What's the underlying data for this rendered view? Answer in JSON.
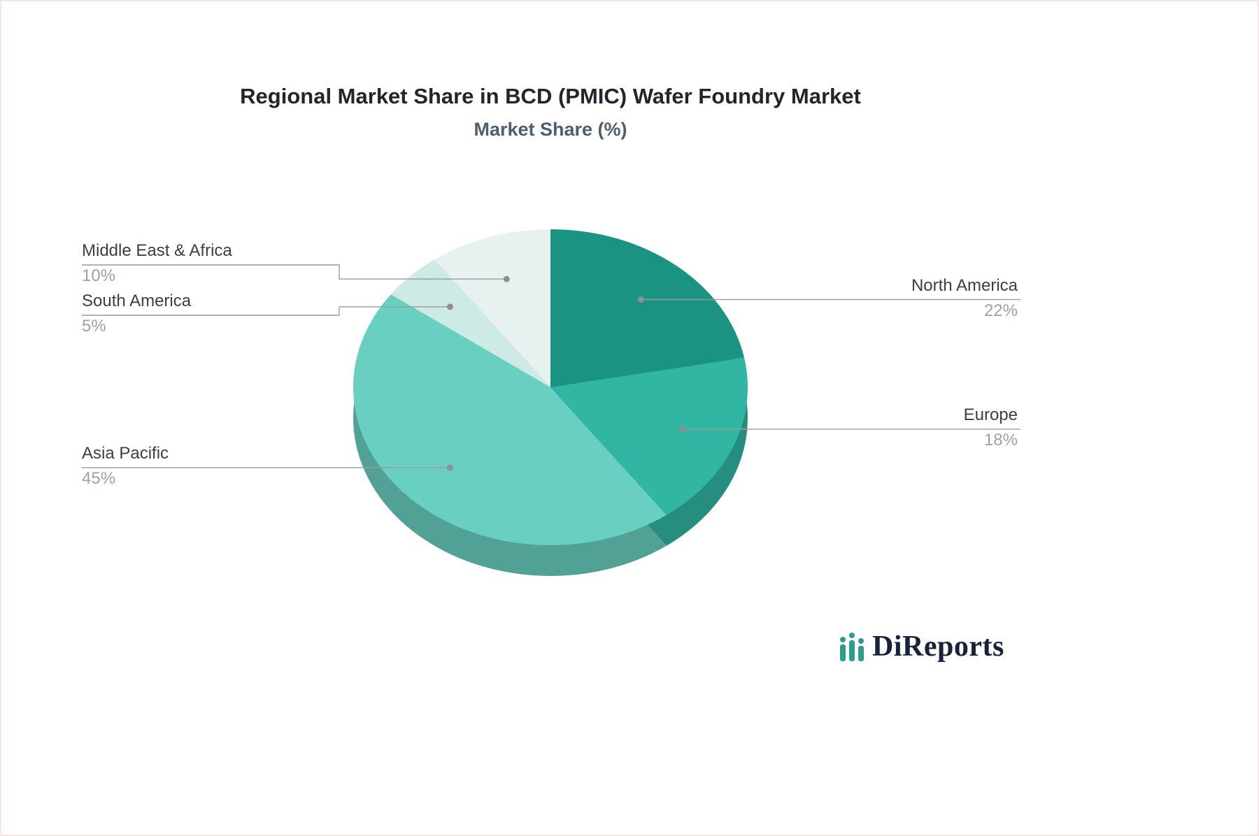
{
  "page": {
    "background": "#ffffff"
  },
  "chart_data": {
    "type": "pie",
    "title": "Regional Market Share in BCD (PMIC) Wafer Foundry Market",
    "subtitle": "Market Share (%)",
    "labels": [
      "North America",
      "Europe",
      "Asia Pacific",
      "South America",
      "Middle East & Africa"
    ],
    "values": [
      22,
      18,
      45,
      5,
      10
    ],
    "value_labels": [
      "22%",
      "18%",
      "45%",
      "5%",
      "10%"
    ],
    "colors": [
      "#1a9382",
      "#30b6a3",
      "#69cfc0",
      "#cdeae4",
      "#e7f2f0"
    ],
    "start_angle_deg": 0,
    "direction": "clockwise",
    "effect": "3d-depth",
    "legend_position": "none",
    "leader_line_color": "#9b9b9b",
    "label_color": "#3b3f42",
    "value_color": "#9ba1a6",
    "title_color": "#22252d",
    "subtitle_color": "#4c5e70"
  },
  "logo": {
    "text": "DiReports",
    "icon": "bar-chart-icon",
    "text_color": "#16233d",
    "icon_color": "#2b9c8d"
  }
}
